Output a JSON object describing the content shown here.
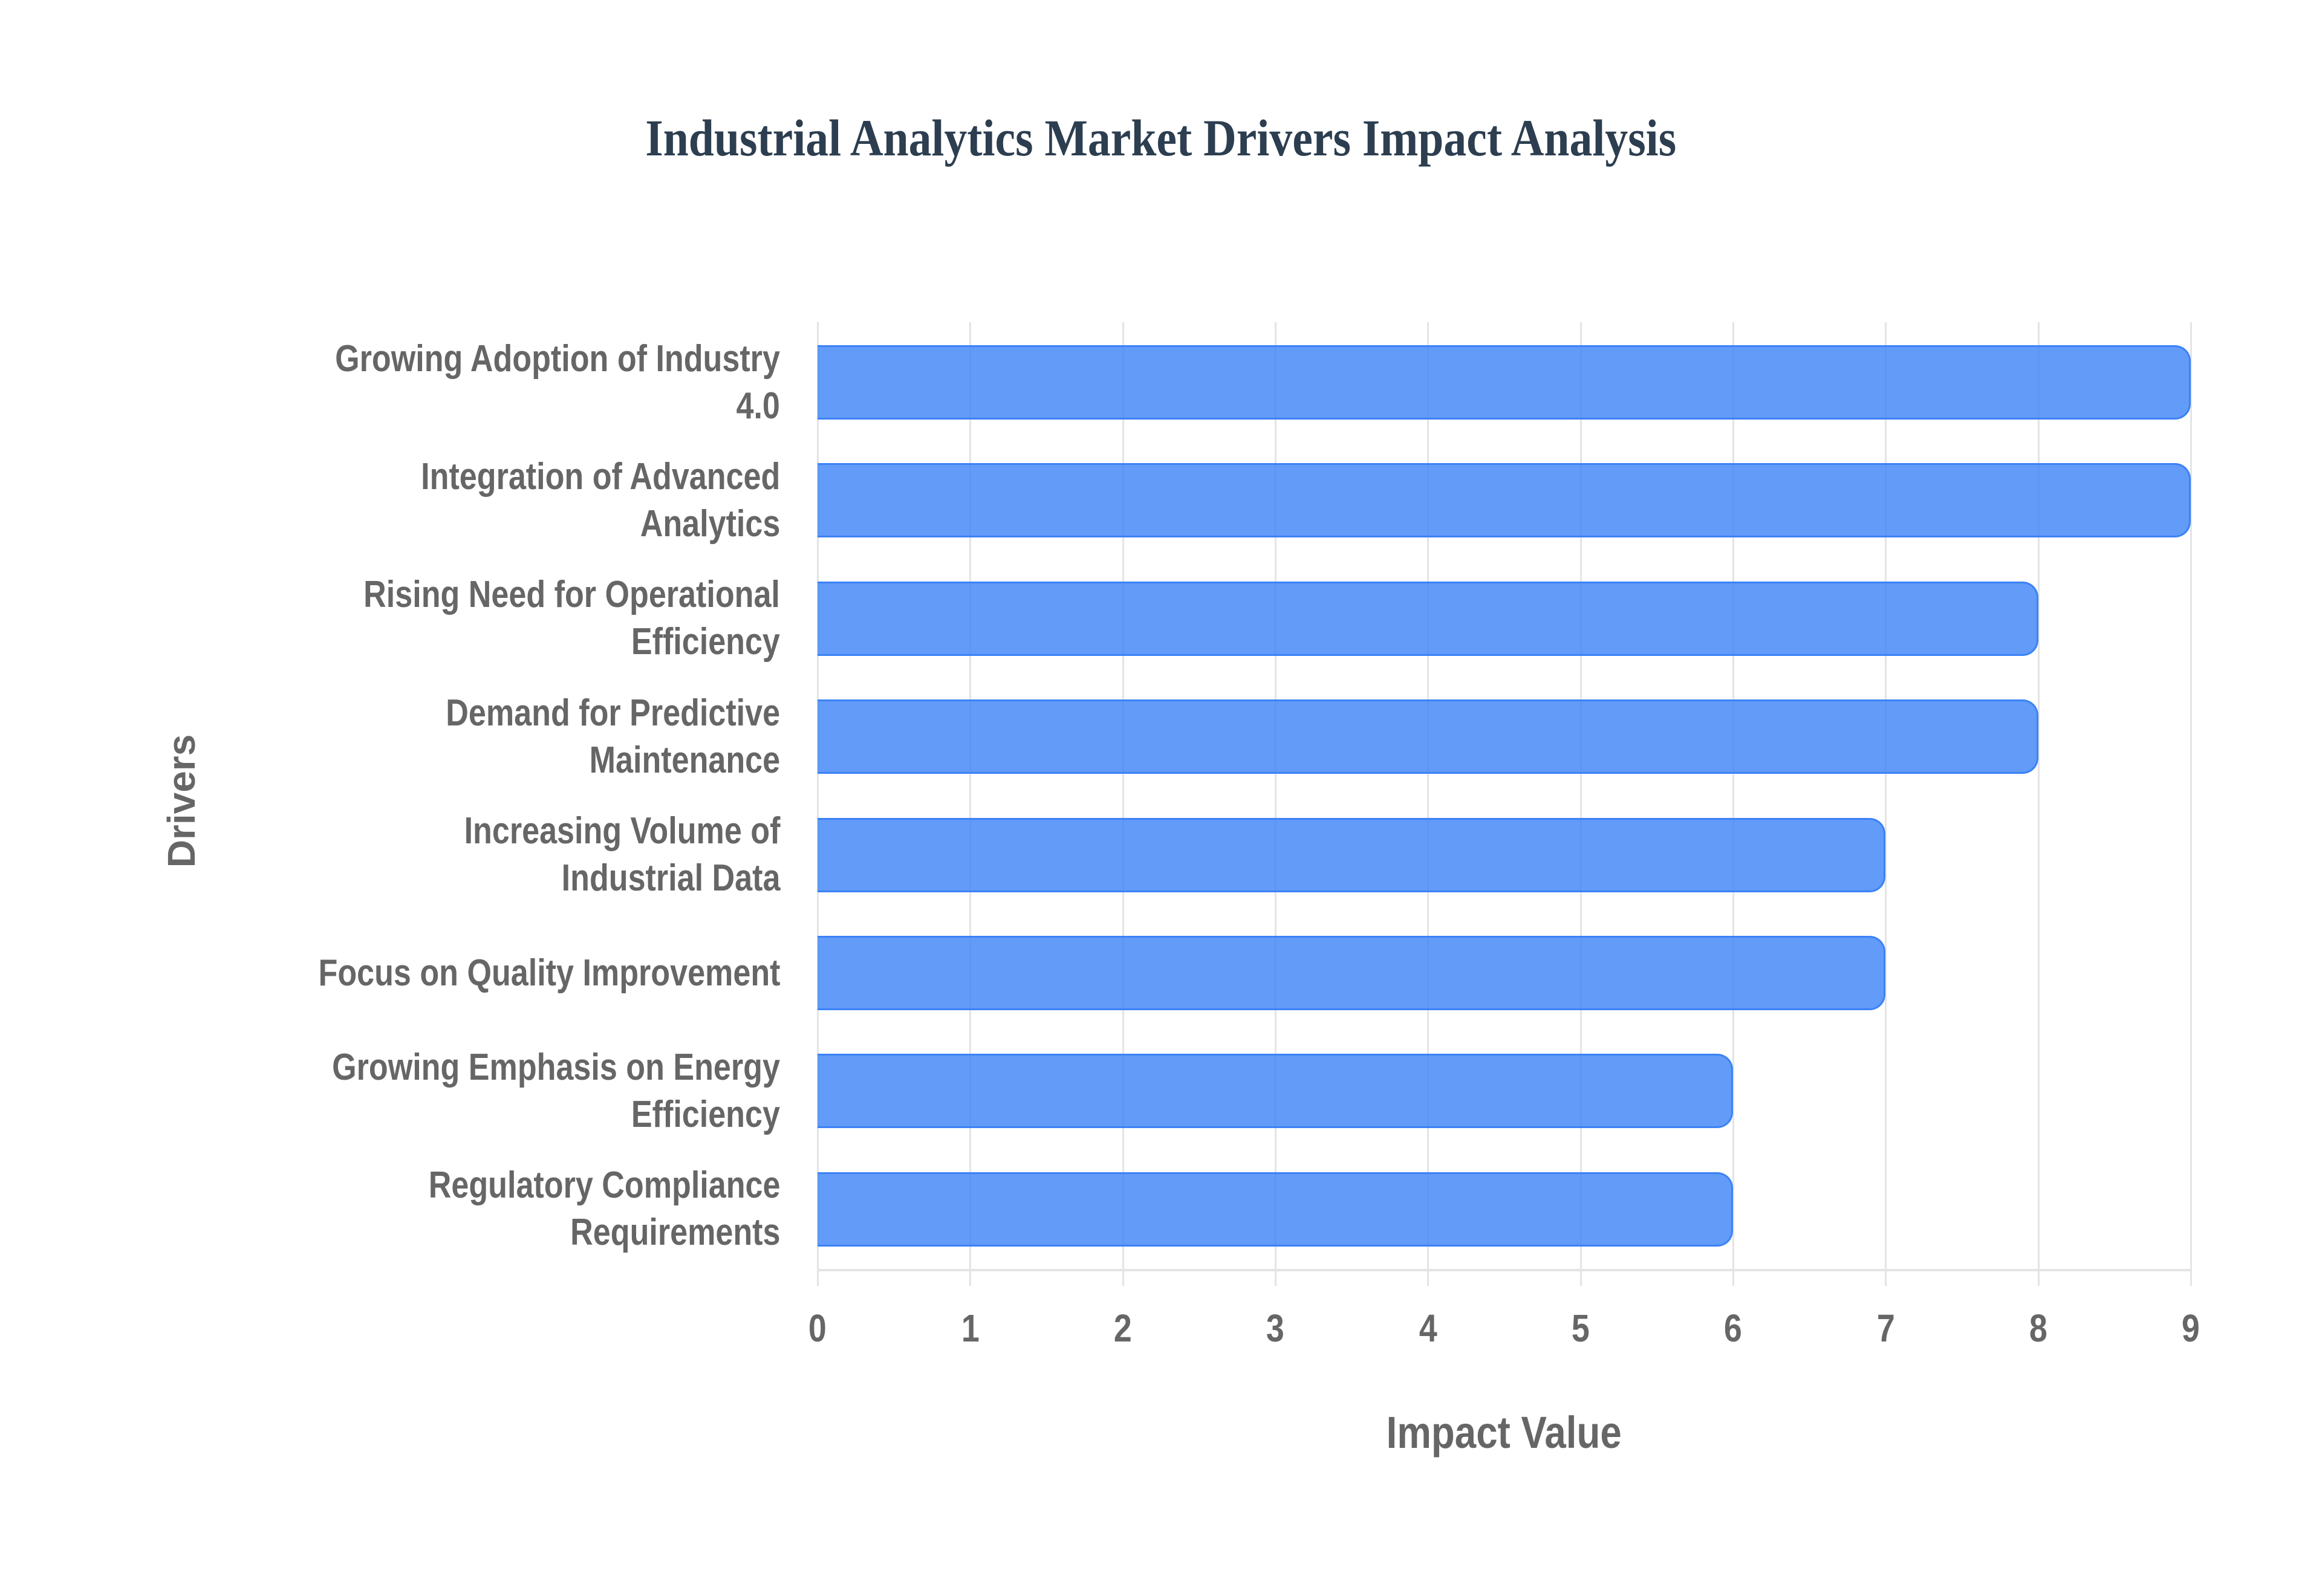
{
  "title": "Industrial Analytics Market Drivers Impact Analysis",
  "colors": {
    "title": "#2c3e50",
    "bar_fill": "rgba(59,130,246,0.8)",
    "bar_border": "#3b82f6",
    "grid": "#e4e4e4",
    "axis_text": "#666666"
  },
  "chart_data": {
    "type": "bar",
    "orientation": "horizontal",
    "title": "Industrial Analytics Market Drivers Impact Analysis",
    "xlabel": "Impact Value",
    "ylabel": "Drivers",
    "xlim": [
      0,
      9
    ],
    "x_ticks": [
      "0",
      "1",
      "2",
      "3",
      "4",
      "5",
      "6",
      "7",
      "8",
      "9"
    ],
    "grid": true,
    "legend": "none",
    "categories": [
      "Growing Adoption of Industry 4.0",
      "Integration of Advanced Analytics",
      "Rising Need for Operational Efficiency",
      "Demand for Predictive Maintenance",
      "Increasing Volume of Industrial Data",
      "Focus on Quality Improvement",
      "Growing Emphasis on Energy Efficiency",
      "Regulatory Compliance Requirements"
    ],
    "category_lines": [
      "Growing Adoption of Industry\n4.0",
      "Integration of Advanced\nAnalytics",
      "Rising Need for Operational\nEfficiency",
      "Demand for Predictive\nMaintenance",
      "Increasing Volume of\nIndustrial Data",
      "Focus on Quality Improvement",
      "Growing Emphasis on Energy\nEfficiency",
      "Regulatory Compliance\nRequirements"
    ],
    "values": [
      9,
      9,
      8,
      8,
      7,
      7,
      6,
      6
    ]
  }
}
